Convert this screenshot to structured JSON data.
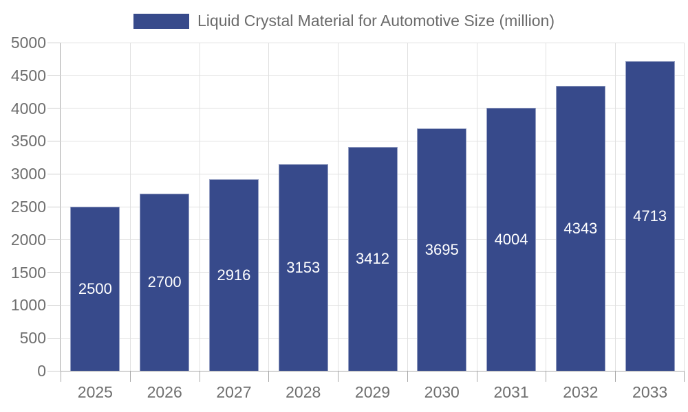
{
  "chart_data": {
    "type": "bar",
    "title": "",
    "legend": "Liquid Crystal Material for Automotive Size (million)",
    "legend_position": "top",
    "categories": [
      "2025",
      "2026",
      "2027",
      "2028",
      "2029",
      "2030",
      "2031",
      "2032",
      "2033"
    ],
    "series": [
      {
        "name": "Liquid Crystal Material for Automotive Size (million)",
        "values": [
          2500,
          2700,
          2916,
          3153,
          3412,
          3695,
          4004,
          4343,
          4713
        ]
      }
    ],
    "value_labels": [
      "2500",
      "2700",
      "2916",
      "3153",
      "3412",
      "3695",
      "4004",
      "4343",
      "4713"
    ],
    "xlabel": "",
    "ylabel": "",
    "ylim": [
      0,
      5000
    ],
    "ytick_step": 500,
    "ytick_labels": [
      "0",
      "500",
      "1000",
      "1500",
      "2000",
      "2500",
      "3000",
      "3500",
      "4000",
      "4500",
      "5000"
    ],
    "grid": true,
    "colors": {
      "bar_fill": "#374a8b",
      "bar_border": "#96a0c3",
      "grid_line": "#e0e0e0",
      "axis_line": "#a8a8a8",
      "y_tick_mark": "#cccccc",
      "x_tick_mark": "#a8a8a8",
      "tick_label_text": "#6f6f6f",
      "legend_text": "#6b6b6b",
      "bar_value_text": "#ffffff",
      "background": "#ffffff"
    }
  }
}
